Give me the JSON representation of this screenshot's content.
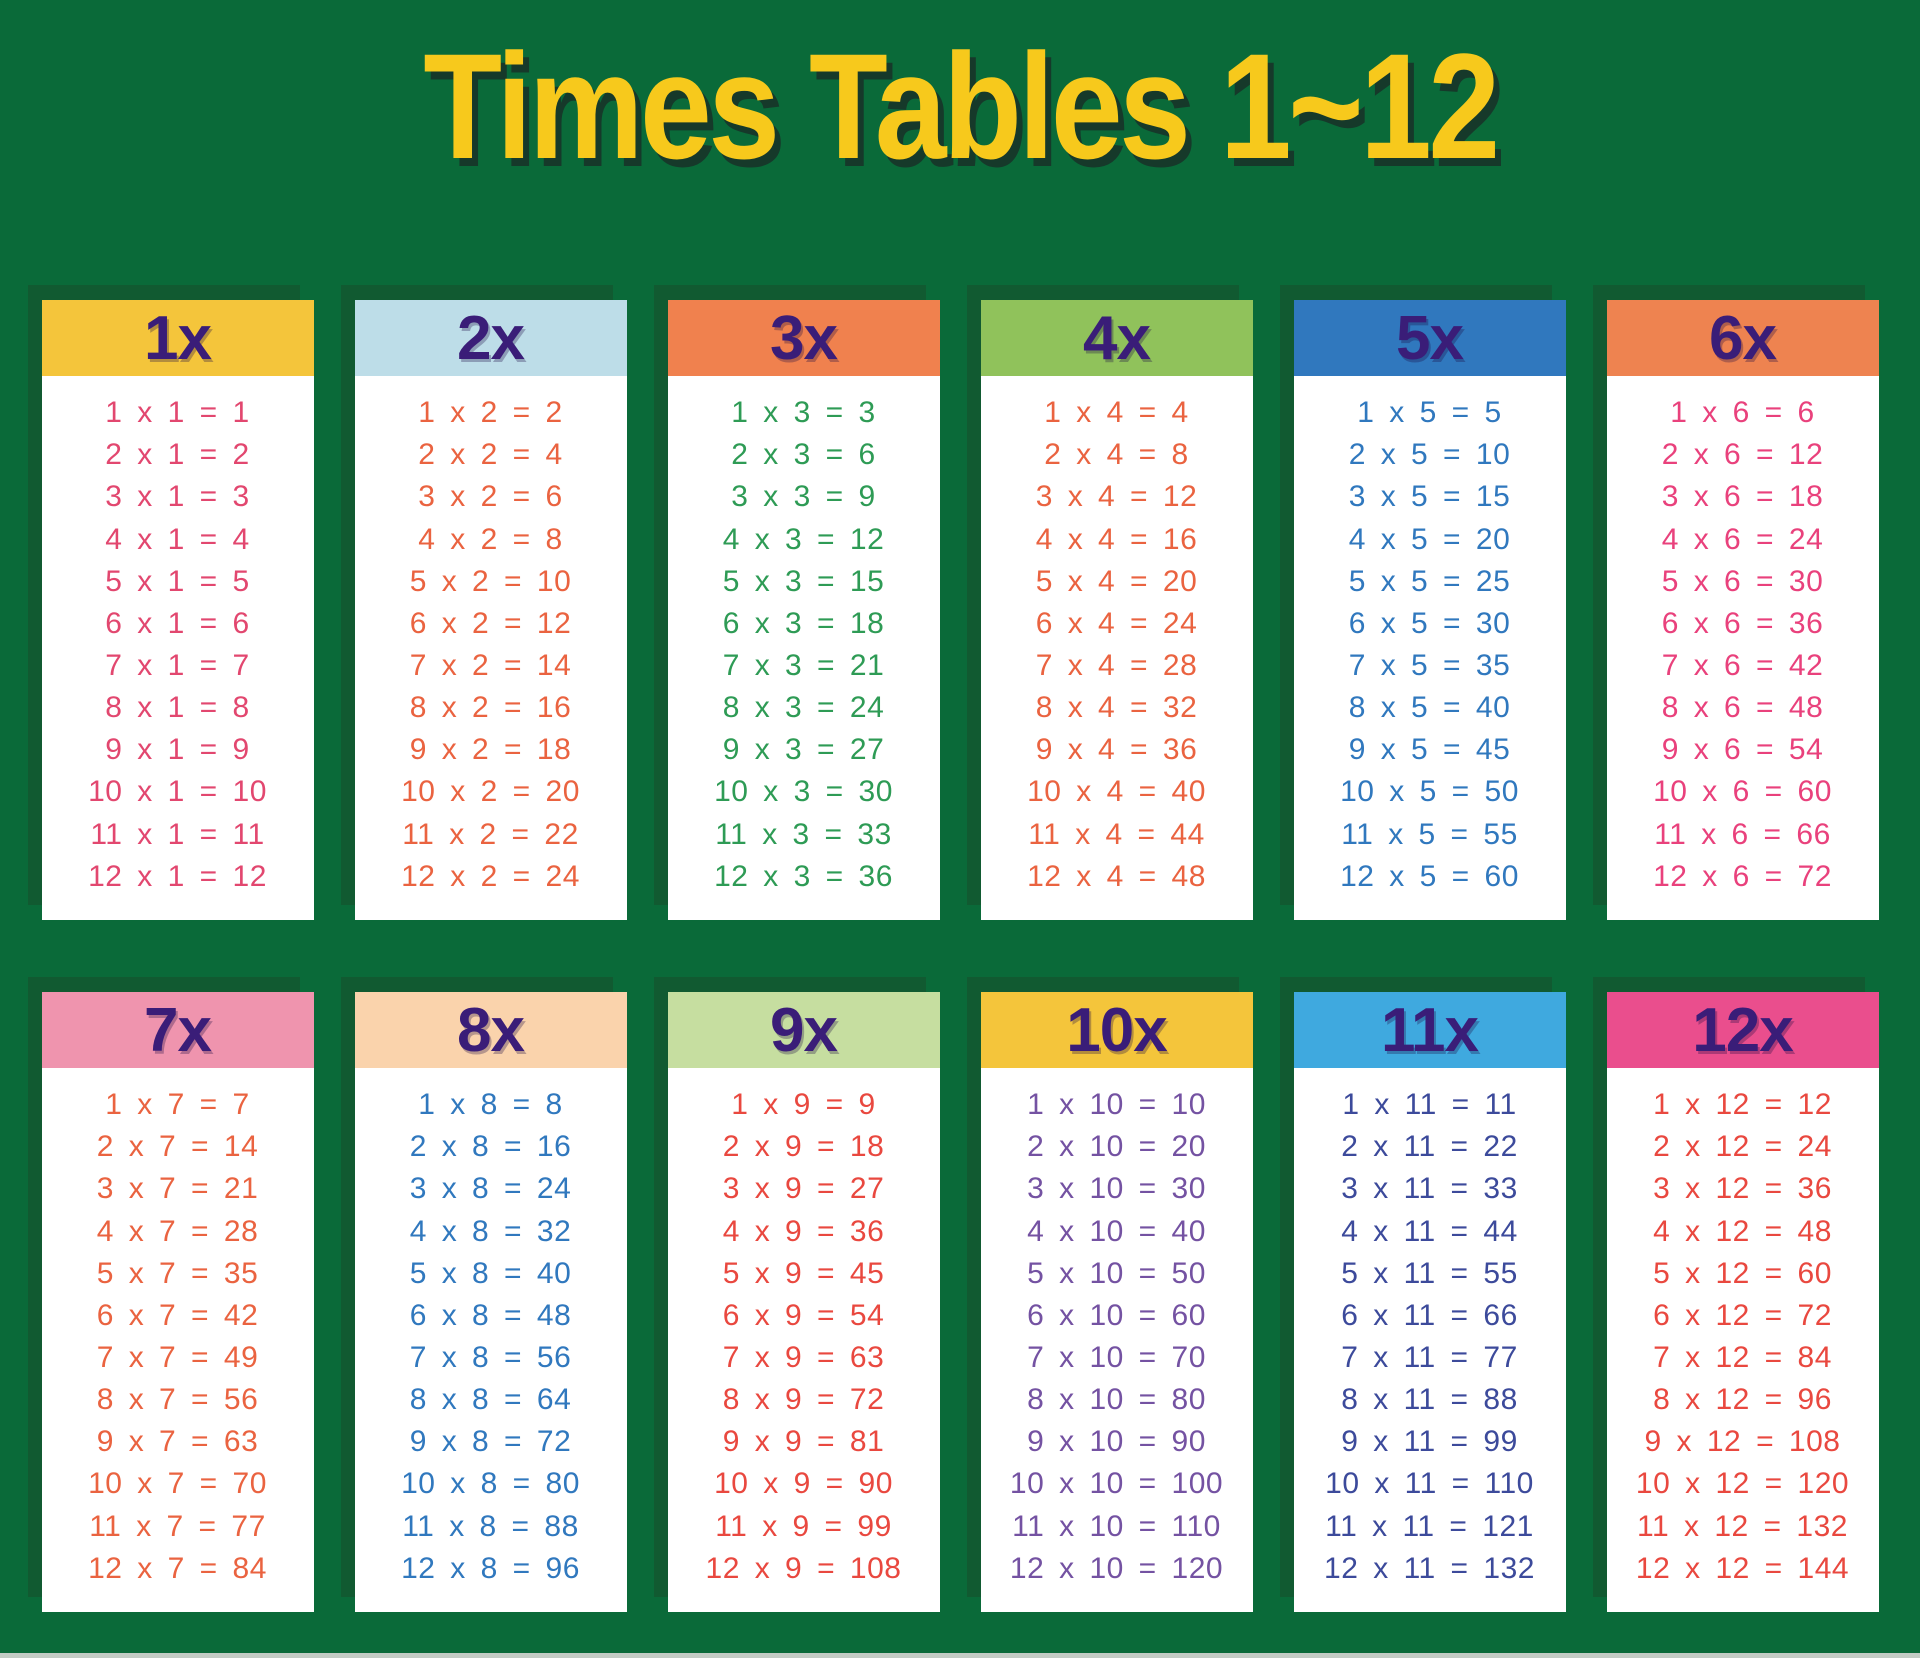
{
  "title": "Times Tables 1~12",
  "colors": {
    "background": "#0A6A39",
    "card_shadow": "#115A31",
    "card_body_background": "#FFFFFF",
    "header_label": "#3A1D78",
    "title": "#F7C91C",
    "title_shadow": "#16392A",
    "bottom_strip": "#C3CCC5"
  },
  "cards": [
    {
      "label": "1x",
      "header_color": "#F4C53B",
      "text_color": "#E2476F",
      "facts": [
        "1 x 1 = 1",
        "2 x 1 = 2",
        "3 x 1 = 3",
        "4 x 1 = 4",
        "5 x 1 = 5",
        "6 x 1 = 6",
        "7 x 1 = 7",
        "8 x 1 = 8",
        "9 x 1 = 9",
        "10 x 1 = 10",
        "11 x 1 = 11",
        "12 x 1 = 12"
      ]
    },
    {
      "label": "2x",
      "header_color": "#BDDDE8",
      "text_color": "#EA6340",
      "facts": [
        "1 x 2 = 2",
        "2 x 2 = 4",
        "3 x 2 = 6",
        "4 x 2 = 8",
        "5 x 2 = 10",
        "6 x 2 = 12",
        "7 x 2 = 14",
        "8 x 2 = 16",
        "9 x 2 = 18",
        "10 x 2 = 20",
        "11 x 2 = 22",
        "12 x 2 = 24"
      ]
    },
    {
      "label": "3x",
      "header_color": "#F0814E",
      "text_color": "#2E9B55",
      "facts": [
        "1 x 3 = 3",
        "2 x 3 = 6",
        "3 x 3 = 9",
        "4 x 3 = 12",
        "5 x 3 = 15",
        "6 x 3 = 18",
        "7 x 3 = 21",
        "8 x 3 = 24",
        "9 x 3 = 27",
        "10 x 3 = 30",
        "11 x 3 = 33",
        "12 x 3 = 36"
      ]
    },
    {
      "label": "4x",
      "header_color": "#90C25B",
      "text_color": "#EA6340",
      "facts": [
        "1 x 4 = 4",
        "2 x 4 = 8",
        "3 x 4 = 12",
        "4 x 4 = 16",
        "5 x 4 = 20",
        "6 x 4 = 24",
        "7 x 4 = 28",
        "8 x 4 = 32",
        "9 x 4 = 36",
        "10 x 4 = 40",
        "11 x 4 = 44",
        "12 x 4 = 48"
      ]
    },
    {
      "label": "5x",
      "header_color": "#3078BE",
      "text_color": "#3078BE",
      "facts": [
        "1 x 5 = 5",
        "2 x 5 = 10",
        "3 x 5 = 15",
        "4 x 5 = 20",
        "5 x 5 = 25",
        "6 x 5 = 30",
        "7 x 5 = 35",
        "8 x 5 = 40",
        "9 x 5 = 45",
        "10 x 5 = 50",
        "11 x 5 = 55",
        "12 x 5 = 60"
      ]
    },
    {
      "label": "6x",
      "header_color": "#EE8350",
      "text_color": "#E9417C",
      "facts": [
        "1 x 6 = 6",
        "2 x 6 = 12",
        "3 x 6 = 18",
        "4 x 6 = 24",
        "5 x 6 = 30",
        "6 x 6 = 36",
        "7 x 6 = 42",
        "8 x 6 = 48",
        "9 x 6 = 54",
        "10 x 6 = 60",
        "11 x 6 = 66",
        "12 x 6 = 72"
      ]
    },
    {
      "label": "7x",
      "header_color": "#EF94AE",
      "text_color": "#EA6340",
      "facts": [
        "1 x 7 = 7",
        "2 x 7 = 14",
        "3 x 7 = 21",
        "4 x 7 = 28",
        "5 x 7 = 35",
        "6 x 7 = 42",
        "7 x 7 = 49",
        "8 x 7 = 56",
        "9 x 7 = 63",
        "10 x 7 = 70",
        "11 x 7 = 77",
        "12 x 7 = 84"
      ]
    },
    {
      "label": "8x",
      "header_color": "#FAD3AC",
      "text_color": "#3078BE",
      "facts": [
        "1 x 8 = 8",
        "2 x 8 = 16",
        "3 x 8 = 24",
        "4 x 8 = 32",
        "5 x 8 = 40",
        "6 x 8 = 48",
        "7 x 8 = 56",
        "8 x 8 = 64",
        "9 x 8 = 72",
        "10 x 8 = 80",
        "11 x 8 = 88",
        "12 x 8 = 96"
      ]
    },
    {
      "label": "9x",
      "header_color": "#C6DEA0",
      "text_color": "#E9483F",
      "facts": [
        "1 x 9 = 9",
        "2 x 9 = 18",
        "3 x 9 = 27",
        "4 x 9 = 36",
        "5 x 9 = 45",
        "6 x 9 = 54",
        "7 x 9 = 63",
        "8 x 9 = 72",
        "9 x 9 = 81",
        "10 x 9 = 90",
        "11 x 9 = 99",
        "12 x 9 = 108"
      ]
    },
    {
      "label": "10x",
      "header_color": "#F4C53B",
      "text_color": "#7452A2",
      "facts": [
        "1 x 10 = 10",
        "2 x 10 = 20",
        "3 x 10 = 30",
        "4 x 10 = 40",
        "5 x 10 = 50",
        "6 x 10 = 60",
        "7 x 10 = 70",
        "8 x 10 = 80",
        "9 x 10 = 90",
        "10 x 10 = 100",
        "11 x 10 = 110",
        "12 x 10 = 120"
      ]
    },
    {
      "label": "11x",
      "header_color": "#3FA9DF",
      "text_color": "#3C4A9B",
      "facts": [
        "1 x 11 = 11",
        "2 x 11 = 22",
        "3 x 11 = 33",
        "4 x 11 = 44",
        "5 x 11 = 55",
        "6 x 11 = 66",
        "7 x 11 = 77",
        "8 x 11 = 88",
        "9 x 11 = 99",
        "10 x 11 = 110",
        "11 x 11 = 121",
        "12 x 11 = 132"
      ]
    },
    {
      "label": "12x",
      "header_color": "#EA4E8D",
      "text_color": "#E9483F",
      "facts": [
        "1 x 12 = 12",
        "2 x 12 = 24",
        "3 x 12 = 36",
        "4 x 12 = 48",
        "5 x 12 = 60",
        "6 x 12 = 72",
        "7 x 12 = 84",
        "8 x 12 = 96",
        "9 x 12 = 108",
        "10 x 12 = 120",
        "11 x 12 = 132",
        "12 x 12 = 144"
      ]
    }
  ]
}
